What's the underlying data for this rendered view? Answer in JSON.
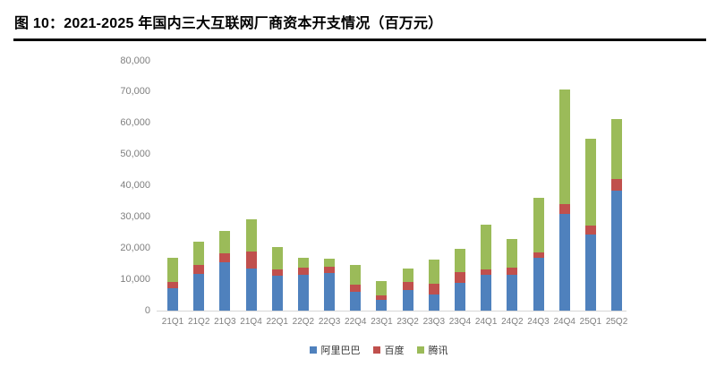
{
  "figure": {
    "title": "图 10：2021-2025 年国内三大互联网厂商资本开支情况（百万元）"
  },
  "chart_data": {
    "type": "bar",
    "stacked": true,
    "title": "2021-2025 年国内三大互联网厂商资本开支情况",
    "unit": "百万元",
    "categories": [
      "21Q1",
      "21Q2",
      "21Q3",
      "21Q4",
      "22Q1",
      "22Q2",
      "22Q3",
      "22Q4",
      "23Q1",
      "23Q2",
      "23Q3",
      "23Q4",
      "24Q1",
      "24Q2",
      "24Q3",
      "24Q4",
      "25Q1",
      "25Q2"
    ],
    "series": [
      {
        "key": "alibaba",
        "name": "阿里巴巴",
        "color": "#4F81BD",
        "values": [
          7300,
          11900,
          15500,
          13400,
          11200,
          11500,
          12100,
          6100,
          3500,
          6600,
          5200,
          9000,
          11500,
          11600,
          17000,
          31000,
          24300,
          38300
        ]
      },
      {
        "key": "baidu",
        "name": "百度",
        "color": "#C0504D",
        "values": [
          1900,
          2700,
          3000,
          5400,
          2100,
          2300,
          1900,
          2200,
          1500,
          2700,
          3400,
          3400,
          1700,
          2100,
          1700,
          3100,
          3000,
          3800
        ]
      },
      {
        "key": "tencent",
        "name": "腾讯",
        "color": "#9BBB59",
        "values": [
          7800,
          7400,
          7000,
          10500,
          7200,
          3100,
          2500,
          6200,
          4400,
          4100,
          7800,
          7500,
          14300,
          9300,
          17500,
          36600,
          27700,
          19300
        ]
      }
    ],
    "ylim": [
      0,
      80000
    ],
    "y_tick_step": 10000,
    "y_tick_labels": [
      "0",
      "10,000",
      "20,000",
      "30,000",
      "40,000",
      "50,000",
      "60,000",
      "70,000",
      "80,000"
    ],
    "grid": false,
    "legend_position": "bottom",
    "axis_label_color": "#7F7F7F"
  }
}
